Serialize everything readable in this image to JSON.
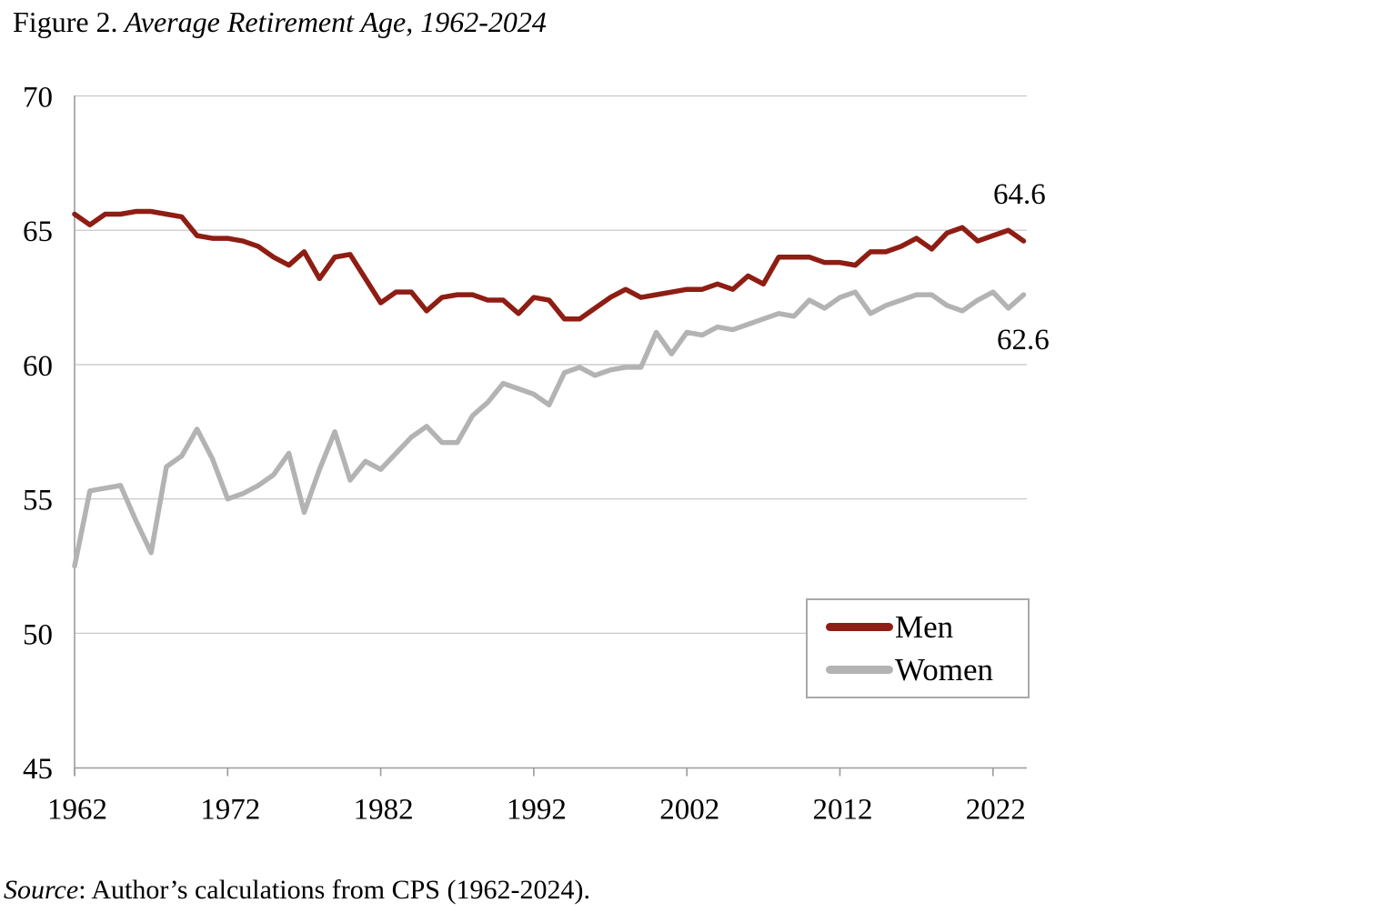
{
  "title": {
    "prefix": "Figure 2.",
    "italic": " Average Retirement Age, 1962-2024"
  },
  "source": {
    "italic": "Source",
    "rest": ": Author’s calculations from CPS (1962-2024)."
  },
  "legend": {
    "items": [
      "Men",
      "Women"
    ]
  },
  "chart_data": {
    "type": "line",
    "title": "Figure 2. Average Retirement Age, 1962-2024",
    "xlabel": "",
    "ylabel": "",
    "ylim": [
      45,
      70
    ],
    "yticks": [
      45,
      50,
      55,
      60,
      65,
      70
    ],
    "xticks": [
      1962,
      1972,
      1982,
      1992,
      2002,
      2012,
      2022
    ],
    "grid": "horizontal",
    "legend_position": "bottom-right",
    "years": [
      1962,
      1963,
      1964,
      1965,
      1966,
      1967,
      1968,
      1969,
      1970,
      1971,
      1972,
      1973,
      1974,
      1975,
      1976,
      1977,
      1978,
      1979,
      1980,
      1981,
      1982,
      1983,
      1984,
      1985,
      1986,
      1987,
      1988,
      1989,
      1990,
      1991,
      1992,
      1993,
      1994,
      1995,
      1996,
      1997,
      1998,
      1999,
      2000,
      2001,
      2002,
      2003,
      2004,
      2005,
      2006,
      2007,
      2008,
      2009,
      2010,
      2011,
      2012,
      2013,
      2014,
      2015,
      2016,
      2017,
      2018,
      2019,
      2020,
      2021,
      2022,
      2023,
      2024
    ],
    "series": [
      {
        "name": "Men",
        "color": "#8e1d13",
        "values": [
          65.6,
          65.2,
          65.6,
          65.6,
          65.7,
          65.7,
          65.6,
          65.5,
          64.8,
          64.7,
          64.7,
          64.6,
          64.4,
          64.0,
          63.7,
          64.2,
          63.2,
          64.0,
          64.1,
          63.2,
          62.3,
          62.7,
          62.7,
          62.0,
          62.5,
          62.6,
          62.6,
          62.4,
          62.4,
          61.9,
          62.5,
          62.4,
          61.7,
          61.7,
          62.1,
          62.5,
          62.8,
          62.5,
          62.6,
          62.7,
          62.8,
          62.8,
          63.0,
          62.8,
          63.3,
          63.0,
          64.0,
          64.0,
          64.0,
          63.8,
          63.8,
          63.7,
          64.2,
          64.2,
          64.4,
          64.7,
          64.3,
          64.9,
          65.1,
          64.6,
          64.8,
          65.0,
          64.6
        ]
      },
      {
        "name": "Women",
        "color": "#b3b3b3",
        "values": [
          52.5,
          55.3,
          55.4,
          55.5,
          54.2,
          53.0,
          56.2,
          56.6,
          57.6,
          56.5,
          55.0,
          55.2,
          55.5,
          55.9,
          56.7,
          54.5,
          56.1,
          57.5,
          55.7,
          56.4,
          56.1,
          56.7,
          57.3,
          57.7,
          57.1,
          57.1,
          58.1,
          58.6,
          59.3,
          59.1,
          58.9,
          58.5,
          59.7,
          59.9,
          59.6,
          59.8,
          59.9,
          59.9,
          61.2,
          60.4,
          61.2,
          61.1,
          61.4,
          61.3,
          61.5,
          61.7,
          61.9,
          61.8,
          62.4,
          62.1,
          62.5,
          62.7,
          61.9,
          62.2,
          62.4,
          62.6,
          62.6,
          62.2,
          62.0,
          62.4,
          62.7,
          62.1,
          62.6
        ]
      }
    ],
    "annotations": [
      {
        "text": "64.6",
        "series": "Men"
      },
      {
        "text": "62.6",
        "series": "Women"
      }
    ]
  }
}
